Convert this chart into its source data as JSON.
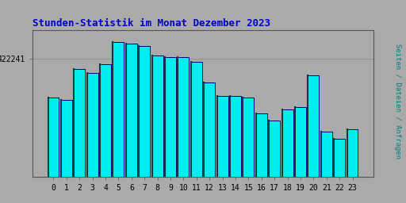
{
  "title": "Stunden-Statistik im Monat Dezember 2023",
  "ylabel": "Seiten / Dateien / Anfragen",
  "xlabel_values": [
    0,
    1,
    2,
    3,
    4,
    5,
    6,
    7,
    8,
    9,
    10,
    11,
    12,
    13,
    14,
    15,
    16,
    17,
    18,
    19,
    20,
    21,
    22,
    23
  ],
  "ytick_label": "422241",
  "bar_values": [
    420500,
    420400,
    421800,
    421600,
    422000,
    423000,
    422900,
    422800,
    422400,
    422300,
    422300,
    422100,
    421200,
    420600,
    420600,
    420500,
    419800,
    419500,
    420000,
    420100,
    421500,
    419000,
    418700,
    419100
  ],
  "bar_color": "#00EEEE",
  "bar_edge_color_dark": "#004040",
  "bar_edge_color_blue": "#000080",
  "background_color": "#AAAAAA",
  "plot_bg_color": "#AAAAAA",
  "title_color": "#0000CC",
  "ylabel_color": "#008080",
  "tick_color": "#000000",
  "ylim_min": 417000,
  "ylim_max": 423500,
  "ytick_val": 422241
}
